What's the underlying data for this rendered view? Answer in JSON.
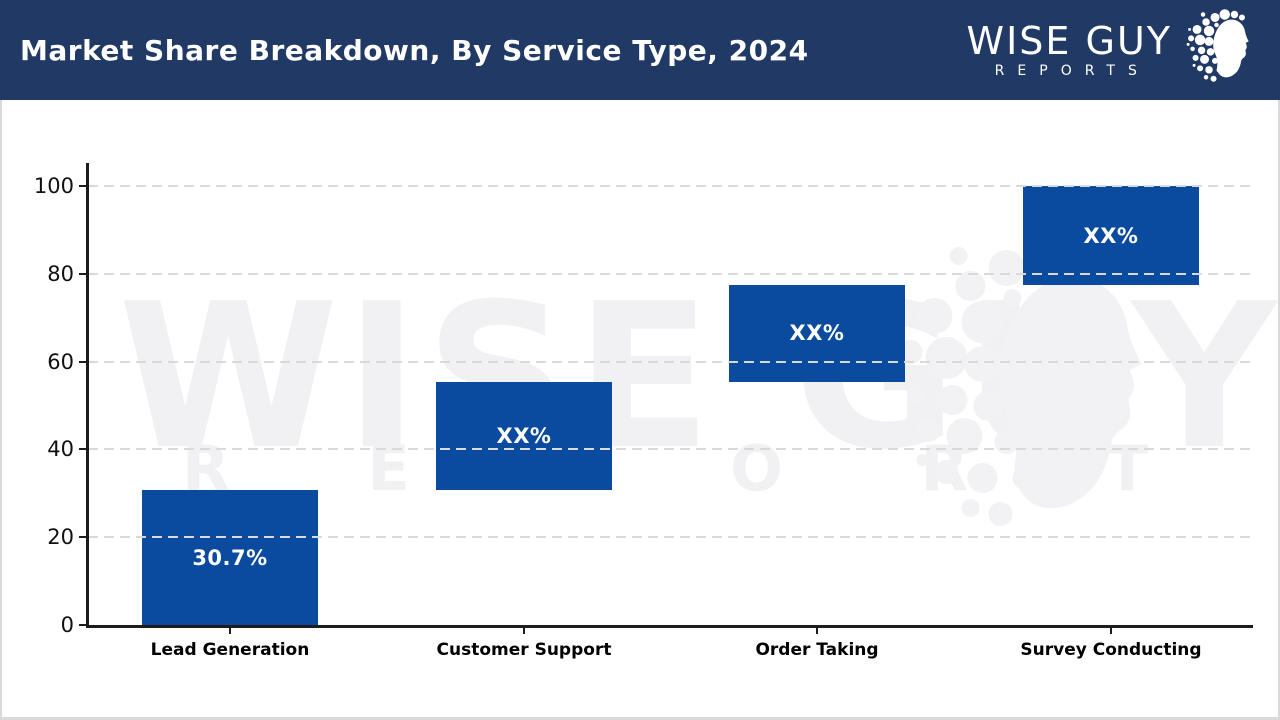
{
  "header": {
    "title": "Market Share Breakdown, By Service Type, 2024",
    "logo": {
      "line1": "WISE GUY",
      "line2": "REPORTS"
    }
  },
  "watermark": {
    "line1": "WISE GUY",
    "line2": "R E P O R T S"
  },
  "colors": {
    "header_bg": "#213965",
    "bar": "#0a4a9f",
    "grid": "#d9d9d9",
    "axis": "#1c1c1c",
    "watermark": "#f1f1f4",
    "bar_label": "#ffffff",
    "tick_text": "#111111"
  },
  "chart_data": {
    "type": "bar",
    "subtype": "waterfall",
    "title": "Market Share Breakdown, By Service Type, 2024",
    "categories": [
      "Lead Generation",
      "Customer Support",
      "Order Taking",
      "Survey Conducting"
    ],
    "bars": [
      {
        "category": "Lead Generation",
        "label": "30.7%",
        "start": 0,
        "end": 30.7
      },
      {
        "category": "Customer Support",
        "label": "XX%",
        "start": 30.7,
        "end": 55.4
      },
      {
        "category": "Order Taking",
        "label": "XX%",
        "start": 55.4,
        "end": 77.4
      },
      {
        "category": "Survey Conducting",
        "label": "XX%",
        "start": 77.4,
        "end": 100
      }
    ],
    "segment_values": [
      30.7,
      24.7,
      22.0,
      22.6
    ],
    "yticks": [
      0,
      20,
      40,
      60,
      80,
      100
    ],
    "ylim": [
      0,
      100
    ],
    "xlabel": "",
    "ylabel": "",
    "grid": "horizontal dashed, drawn over bars",
    "legend": "none"
  }
}
